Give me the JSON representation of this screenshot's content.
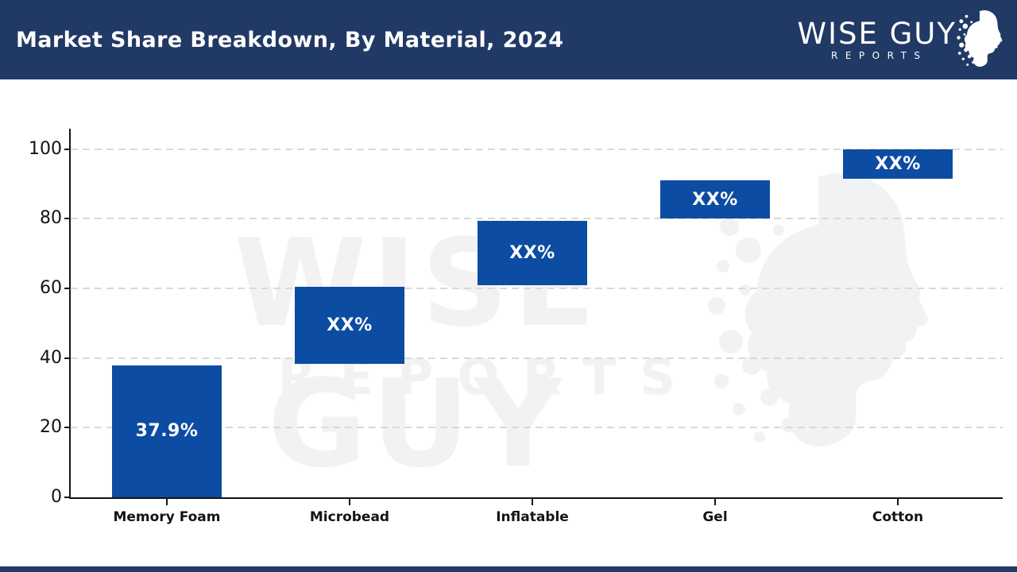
{
  "header": {
    "title": "Market Share Breakdown, By Material, 2024",
    "logo": {
      "line1": "WISE GUY",
      "line2": "REPORTS"
    }
  },
  "watermark": {
    "line1": "WISE GUY",
    "line2": "REPORTS"
  },
  "colors": {
    "header_bg": "#213965",
    "bar_fill": "#0c4ca2",
    "bar_label_text": "#ffffff",
    "gridline": "#d9d9d9",
    "axis": "#141414",
    "watermark": "#f2f2f3",
    "background": "#ffffff"
  },
  "chart_data": {
    "type": "bar",
    "subtype": "waterfall",
    "title": "Market Share Breakdown, By Material, 2024",
    "xlabel": "",
    "ylabel": "",
    "ylim": [
      0,
      100
    ],
    "yticks": [
      0,
      20,
      40,
      60,
      80,
      100
    ],
    "grid": "horizontal-dashed",
    "legend": "none",
    "categories": [
      "Memory Foam",
      "Microbead",
      "Inflatable",
      "Gel",
      "Cotton"
    ],
    "segments": [
      {
        "category": "Memory Foam",
        "start": 0,
        "end": 37.9,
        "label": "37.9%"
      },
      {
        "category": "Microbead",
        "start": 38.2,
        "end": 60.4,
        "label": "XX%"
      },
      {
        "category": "Inflatable",
        "start": 61.0,
        "end": 79.3,
        "label": "XX%"
      },
      {
        "category": "Gel",
        "start": 80.0,
        "end": 91.0,
        "label": "XX%"
      },
      {
        "category": "Cotton",
        "start": 91.4,
        "end": 100.0,
        "label": "XX%"
      }
    ]
  }
}
